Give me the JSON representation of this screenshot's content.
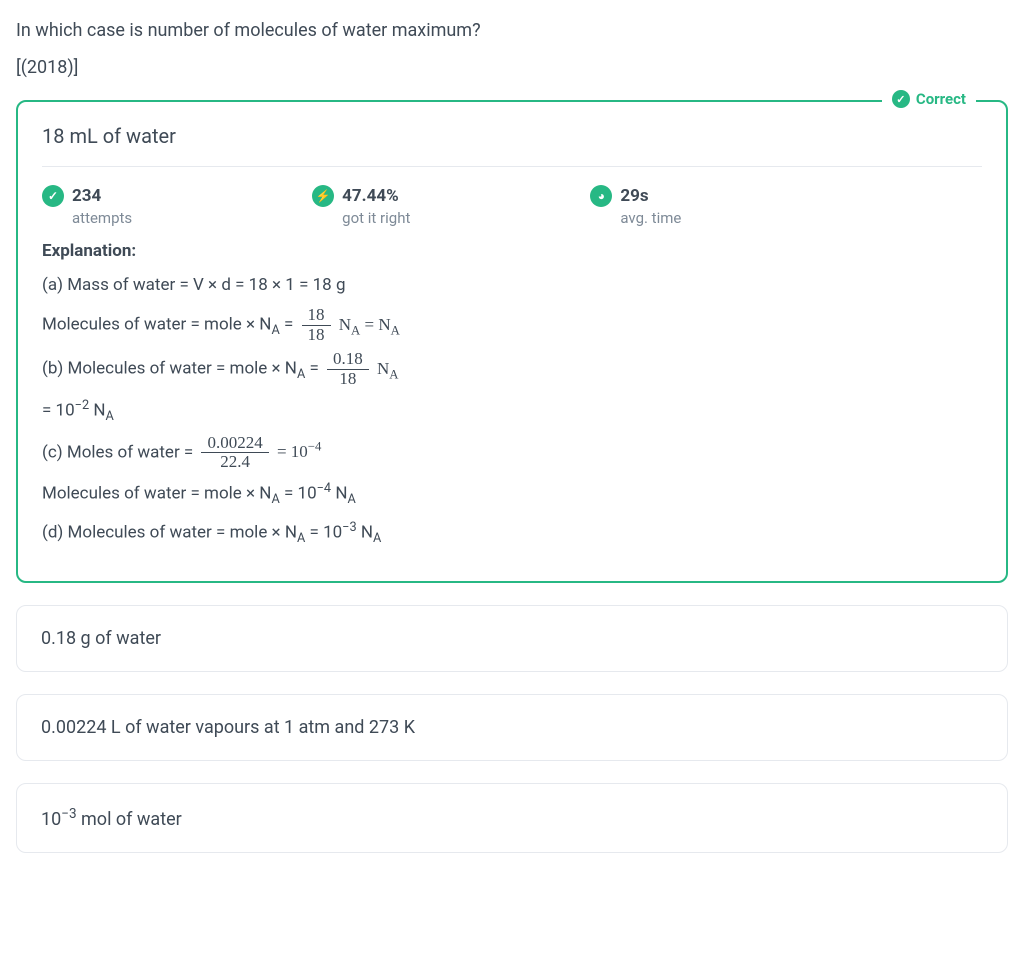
{
  "question": {
    "text": "In which case is number of molecules of water maximum?",
    "year": "[(2018)]"
  },
  "correct": {
    "badge_label": "Correct",
    "answer_text": "18 mL of water"
  },
  "stats": {
    "attempts": {
      "value": "234",
      "label": "attempts"
    },
    "got_right": {
      "value": "47.44%",
      "label": "got it right"
    },
    "avg_time": {
      "value": "29s",
      "label": "avg. time"
    }
  },
  "explanation": {
    "title": "Explanation:",
    "lines": {
      "a1": "(a) Mass of water = V × d = 18 × 1 = 18 g",
      "a2_pre": "Molecules of water = mole × N",
      "a2_sub": "A",
      "a2_eq": " = ",
      "a2_frac_num": "18",
      "a2_frac_den": "18",
      "a2_post1": "N",
      "a2_post2": " = N",
      "b_pre": "(b) Molecules of water = mole × N",
      "b_eq": " = ",
      "b_frac_num": "0.18",
      "b_frac_den": "18",
      "b_post": "N",
      "b2": "= 10",
      "b2_exp": "−2",
      "b2_post": " N",
      "c_pre": "(c) Moles of water = ",
      "c_frac_num": "0.00224",
      "c_frac_den": "22.4",
      "c_eq": " = 10",
      "c_exp": "−4",
      "c2_pre": "Molecules of water = mole × N",
      "c2_eq": " = 10",
      "c2_exp": "−4",
      "c2_post": " N",
      "d_pre": "(d) Molecules of water = mole × N",
      "d_eq": " = 10",
      "d_exp": "−3",
      "d_post": " N"
    }
  },
  "options": {
    "b": "0.18 g of water",
    "c": "0.00224 L of water vapours at 1 atm and 273 K",
    "d_pre": "10",
    "d_exp": "−3",
    "d_post": " mol of water"
  },
  "colors": {
    "accent": "#27b884",
    "text": "#3f4a56",
    "muted": "#7e8a97",
    "border": "#e6e9ee"
  }
}
